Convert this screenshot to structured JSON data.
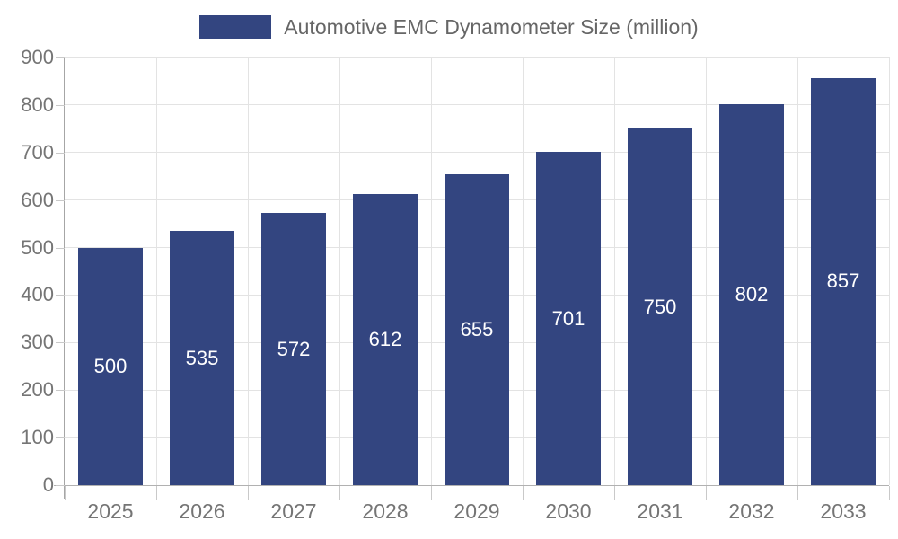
{
  "legend": {
    "label": "Automotive EMC Dynamometer Size (million)",
    "swatch_color": "#334580"
  },
  "chart_data": {
    "type": "bar",
    "title": "Automotive EMC Dynamometer Size (million)",
    "categories": [
      "2025",
      "2026",
      "2027",
      "2028",
      "2029",
      "2030",
      "2031",
      "2032",
      "2033"
    ],
    "values": [
      500,
      535,
      572,
      612,
      655,
      701,
      750,
      802,
      857
    ],
    "xlabel": "",
    "ylabel": "",
    "ylim": [
      0,
      900
    ],
    "yticks": [
      0,
      100,
      200,
      300,
      400,
      500,
      600,
      700,
      800,
      900
    ],
    "grid": true,
    "legend_position": "top-center",
    "bar_color": "#334580",
    "value_label_color": "#ffffff",
    "axis_text_color": "#757575",
    "gridline_color": "#e3e3e3"
  }
}
